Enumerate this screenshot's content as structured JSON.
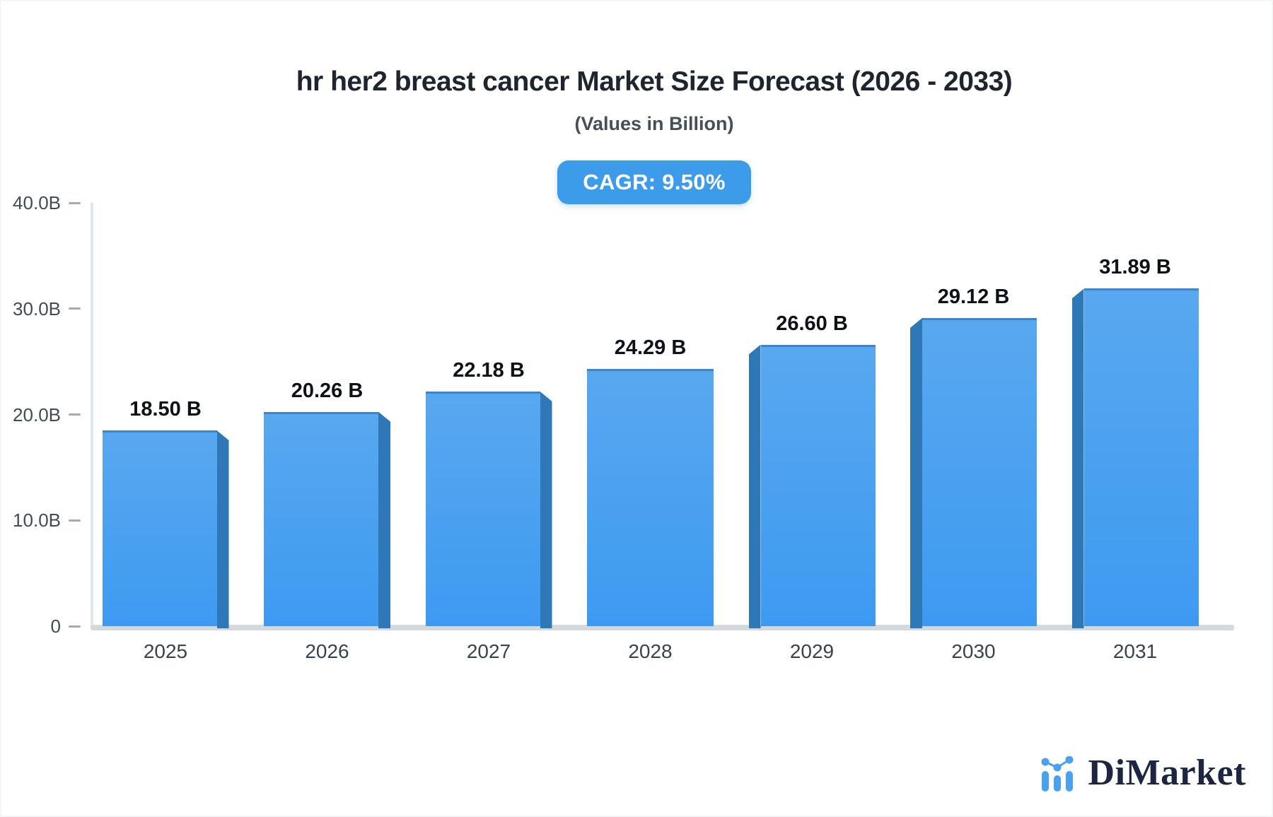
{
  "title": "hr her2 breast cancer Market Size Forecast (2026 - 2033)",
  "subtitle": "(Values in Billion)",
  "badge": {
    "label": "CAGR: 9.50%"
  },
  "chart_data": {
    "type": "bar",
    "categories": [
      "2025",
      "2026",
      "2027",
      "2028",
      "2029",
      "2030",
      "2031"
    ],
    "values": [
      18.5,
      20.26,
      22.18,
      24.29,
      26.6,
      29.12,
      31.89
    ],
    "value_labels": [
      "18.50 B",
      "20.26 B",
      "22.18 B",
      "24.29 B",
      "26.60 B",
      "29.12 B",
      "31.89 B"
    ],
    "title": "hr her2 breast cancer Market Size Forecast (2026 - 2033)",
    "xlabel": "",
    "ylabel": "",
    "ylim": [
      0,
      40
    ],
    "y_ticks": [
      {
        "value": 40,
        "label": "40.0B"
      },
      {
        "value": 30,
        "label": "30.0B"
      },
      {
        "value": 20,
        "label": "20.0B"
      },
      {
        "value": 10,
        "label": "10.0B"
      },
      {
        "value": 0,
        "label": "0"
      }
    ],
    "grid": false,
    "legend": false,
    "bar_style_3d": true,
    "colors": {
      "bar_top": "#58a8ef",
      "bar_bottom": "#3e9af1",
      "bar_top_edge": "#3c85cc",
      "bar_side": "#2e78b8",
      "axis_line": "#e3e6ea",
      "baseline": "#d5d9de",
      "tick_text": "#414b57",
      "value_text": "#0d1218",
      "badge_bg": "#3d9ce9"
    }
  },
  "logo": {
    "text": "DiMarket",
    "icon": "bar-chart-logo-icon",
    "icon_color": "#4aa1f2",
    "text_color": "#1c2541"
  }
}
